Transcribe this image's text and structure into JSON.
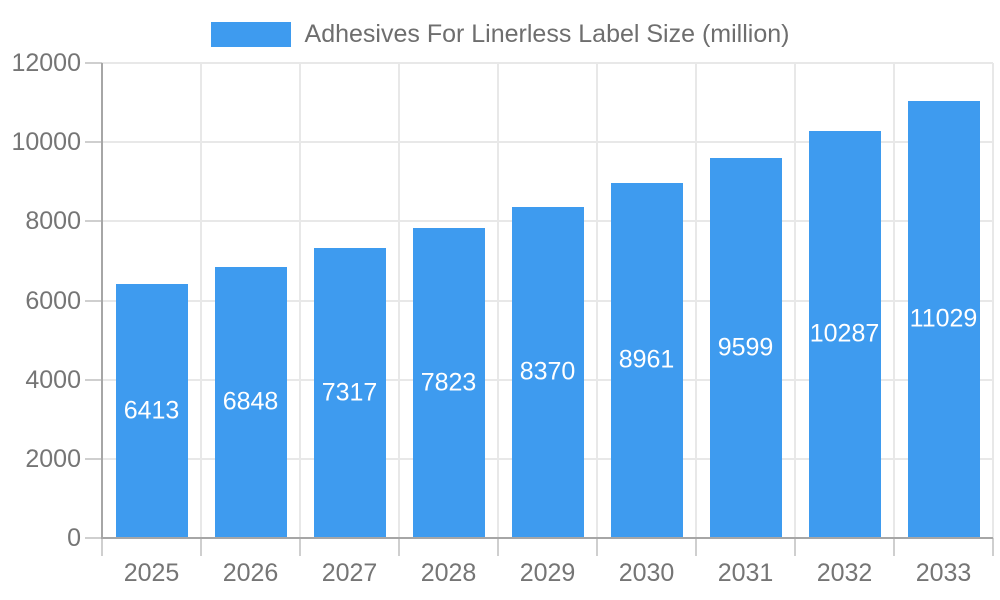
{
  "chart_data": {
    "type": "bar",
    "title": "Adhesives For Linerless Label Size (million)",
    "categories": [
      "2025",
      "2026",
      "2027",
      "2028",
      "2029",
      "2030",
      "2031",
      "2032",
      "2033"
    ],
    "series": [
      {
        "name": "Adhesives For Linerless Label Size (million)",
        "values": [
          6413,
          6848,
          7317,
          7823,
          8370,
          8961,
          9599,
          10287,
          11029
        ]
      }
    ],
    "xlabel": "",
    "ylabel": "",
    "ylim": [
      0,
      12000
    ],
    "yticks": [
      0,
      2000,
      4000,
      6000,
      8000,
      10000,
      12000
    ],
    "grid": "on",
    "legend_position": "top-center",
    "value_labels": "inside-center",
    "colors": {
      "bar": "#3e9bef",
      "value_label": "#ffffff",
      "axis_text": "#757575",
      "legend_text": "#6e6e6e",
      "grid_line": "#e8e8e8",
      "axis_line": "#a6a6a6",
      "tick_mark": "#cfcfcf",
      "background": "#ffffff"
    }
  }
}
